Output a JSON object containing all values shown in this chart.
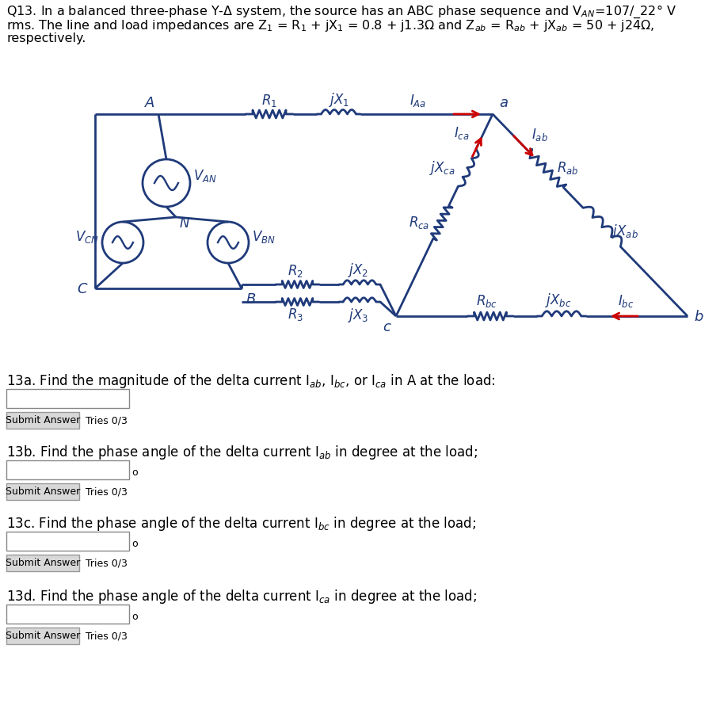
{
  "bg_color": "#ffffff",
  "text_color": "#000000",
  "blue_color": "#1f3a7a",
  "red_color": "#cc0000",
  "header_line1": "Q13. In a balanced three-phase Y-Δ system, the source has an ABC phase sequence and V$_{AN}$=107/_22° V",
  "header_line2": "rms. The line and load impedances are Z$_1$ = R$_1$ + jX$_1$ = 0.8 + j1.3Ω and Z$_{ab}$ = R$_{ab}$ + jX$_{ab}$ = 50 + j24Ω,",
  "header_line3": "respectively.",
  "q13a": "13a. Find the magnitude of the delta current I$_{ab}$, I$_{bc}$, or I$_{ca}$ in A at the load:",
  "q13b": "13b. Find the phase angle of the delta current I$_{ab}$ in degree at the load;",
  "q13c": "13c. Find the phase angle of the delta current I$_{bc}$ in degree at the load;",
  "q13d": "13d. Find the phase angle of the delta current I$_{ca}$ in degree at the load;"
}
